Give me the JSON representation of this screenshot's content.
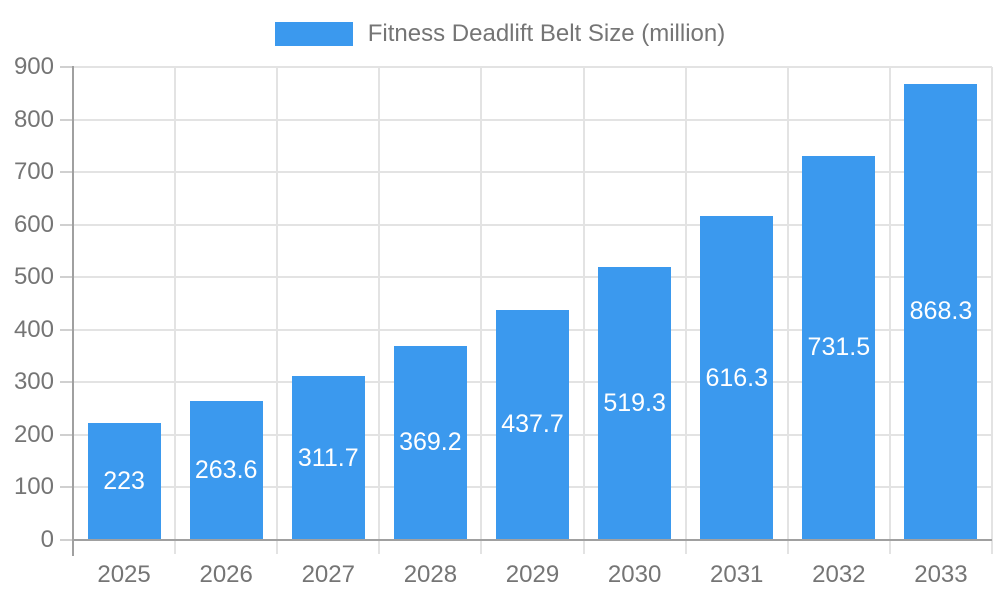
{
  "legend": {
    "label": "Fitness Deadlift Belt Size (million)"
  },
  "chart_data": {
    "type": "bar",
    "title": "Fitness Deadlift Belt Size (million)",
    "categories": [
      "2025",
      "2026",
      "2027",
      "2028",
      "2029",
      "2030",
      "2031",
      "2032",
      "2033"
    ],
    "values": [
      223,
      263.6,
      311.7,
      369.2,
      437.7,
      519.3,
      616.3,
      731.5,
      868.3
    ],
    "value_labels": [
      "223",
      "263.6",
      "311.7",
      "369.2",
      "437.7",
      "519.3",
      "616.3",
      "731.5",
      "868.3"
    ],
    "xlabel": "",
    "ylabel": "",
    "ylim": [
      0,
      900
    ],
    "ytick_step": 100,
    "yticks": [
      0,
      100,
      200,
      300,
      400,
      500,
      600,
      700,
      800,
      900
    ],
    "grid": true,
    "legend_position": "top-center",
    "colors": {
      "bar": "#3B99EE",
      "value_label": "#FFFFFF",
      "axis_text": "#757575",
      "axis_line": "#A0A0A0",
      "gridline": "#E3E3E3",
      "y_tick": "#D0D0D0"
    }
  }
}
